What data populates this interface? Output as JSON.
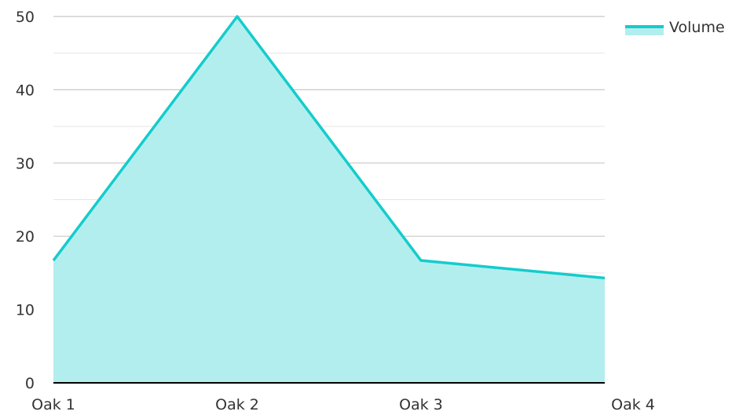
{
  "chart_data": {
    "type": "area",
    "title": "",
    "xlabel": "",
    "ylabel": "",
    "categories": [
      "Oak 1",
      "Oak 2",
      "Oak 3",
      "Oak 4"
    ],
    "series": [
      {
        "name": "Volume",
        "values": [
          16.7,
          50.0,
          16.7,
          14.3
        ]
      }
    ],
    "ylim": [
      0,
      50
    ],
    "yticks": [
      0,
      10,
      20,
      30,
      40,
      50
    ],
    "ytick_labels": [
      "0",
      "10",
      "20",
      "30",
      "40",
      "50"
    ],
    "grid": true,
    "legend": {
      "position": "top-right",
      "entries": [
        "Volume"
      ]
    },
    "colors": {
      "line": "#14cccc",
      "fill": "#b3eeee",
      "grid_major": "#c8c8c8",
      "grid_minor": "#e6e6e6",
      "axis": "#000000"
    }
  }
}
